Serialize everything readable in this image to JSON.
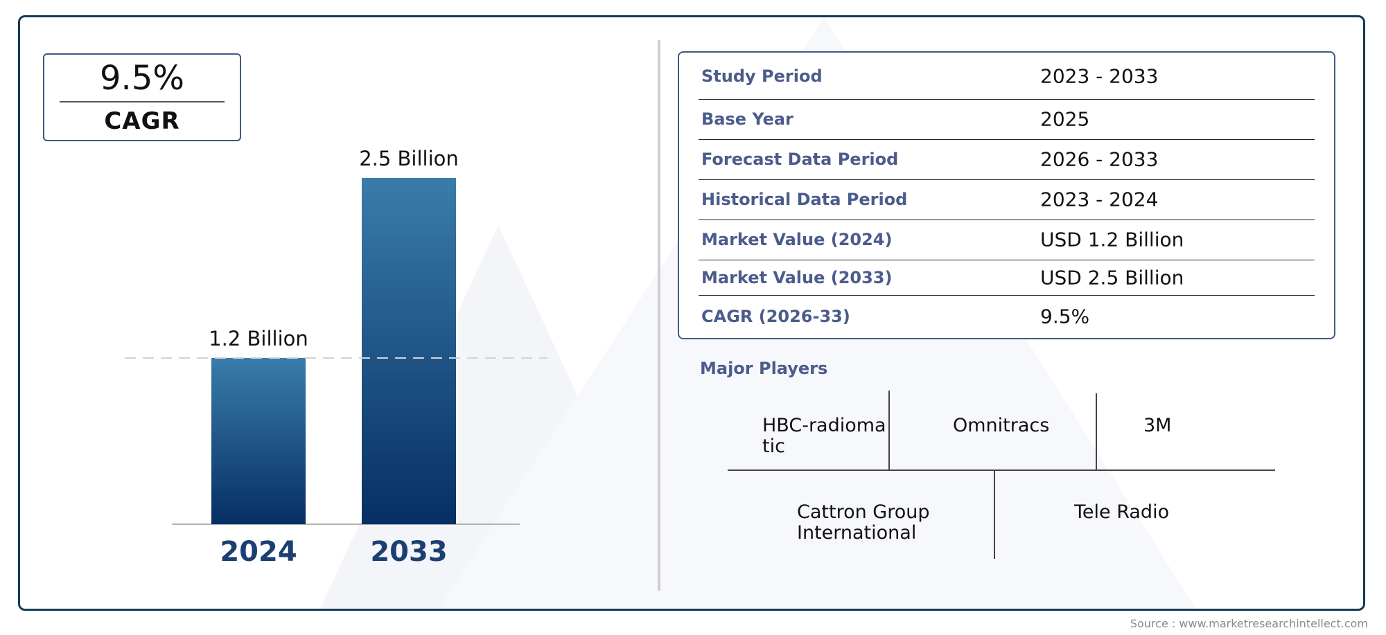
{
  "cagr_card": {
    "value": "9.5%",
    "label": "CAGR"
  },
  "chart_data": {
    "type": "bar",
    "categories": [
      "2024",
      "2033"
    ],
    "values": [
      1.2,
      2.5
    ],
    "value_labels": [
      "1.2 Billion",
      "2.5 Billion"
    ],
    "unit": "Billion",
    "title": "",
    "xlabel": "",
    "ylabel": "",
    "ylim": [
      0,
      2.5
    ],
    "grid": false,
    "reference_line": {
      "style": "dashed",
      "at_value": 1.2
    },
    "colors": {
      "bar_top": "#3a7caa",
      "bar_bottom": "#062f63",
      "category_label": "#1b3f72"
    }
  },
  "info_table": [
    {
      "label": "Study Period",
      "value": "2023 - 2033"
    },
    {
      "label": "Base Year",
      "value": "2025"
    },
    {
      "label": "Forecast Data Period",
      "value": "2026 - 2033"
    },
    {
      "label": "Historical Data Period",
      "value": "2023 - 2024"
    },
    {
      "label": "Market Value (2024)",
      "value": "USD 1.2 Billion"
    },
    {
      "label": "Market Value (2033)",
      "value": "USD 2.5 Billion"
    },
    {
      "label": "CAGR (2026-33)",
      "value": "9.5%"
    }
  ],
  "major_players": {
    "title": "Major Players",
    "row1": [
      {
        "line1": "HBC-radioma",
        "line2": "tic"
      },
      {
        "line1": "Omnitracs",
        "line2": ""
      },
      {
        "line1": "3M",
        "line2": ""
      }
    ],
    "row2": [
      {
        "line1": "Cattron Group",
        "line2": "International"
      },
      {
        "line1": "Tele Radio",
        "line2": ""
      }
    ]
  },
  "source": "Source : www.marketresearchintellect.com",
  "colors": {
    "frame": "#123a56",
    "label_blue": "#4b5c8c",
    "accent": "#3f5a84"
  }
}
